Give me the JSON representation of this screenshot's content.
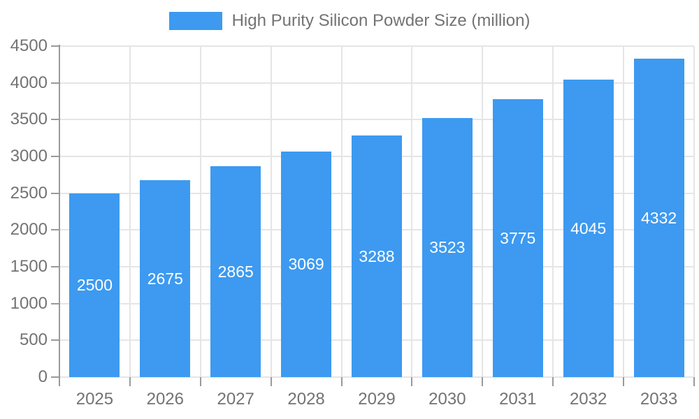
{
  "chart_data": {
    "type": "bar",
    "legend": "High Purity Silicon Powder Size (million)",
    "legend_position": "top",
    "categories": [
      "2025",
      "2026",
      "2027",
      "2028",
      "2029",
      "2030",
      "2031",
      "2032",
      "2033"
    ],
    "values": [
      2500,
      2675,
      2865,
      3069,
      3288,
      3523,
      3775,
      4045,
      4332
    ],
    "ylim": [
      0,
      4500
    ],
    "yticks": [
      0,
      500,
      1000,
      1500,
      2000,
      2500,
      3000,
      3500,
      4000,
      4500
    ],
    "grid": true,
    "colors": {
      "bar": "#3D9AF0",
      "grid": "#E5E5E5",
      "axis": "#9A9A9A",
      "text": "#737373",
      "value_label": "#FFFFFF"
    }
  }
}
